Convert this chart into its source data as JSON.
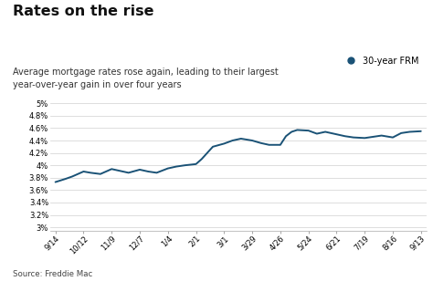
{
  "title": "Rates on the rise",
  "subtitle": "Average mortgage rates rose again, leading to their largest\nyear-over-year gain in over four years",
  "source": "Source: Freddie Mac",
  "legend_label": "30-year FRM",
  "line_color": "#1a5276",
  "background_color": "#ffffff",
  "x_labels": [
    "9/14",
    "10/12",
    "11/9",
    "12/7",
    "1/4",
    "2/1",
    "3/1",
    "3/29",
    "4/26",
    "5/24",
    "6/21",
    "7/19",
    "8/16",
    "9/13"
  ],
  "data_points": [
    [
      0,
      3.73
    ],
    [
      0.35,
      3.78
    ],
    [
      0.6,
      3.82
    ],
    [
      1,
      3.9
    ],
    [
      1.25,
      3.88
    ],
    [
      1.6,
      3.86
    ],
    [
      2,
      3.94
    ],
    [
      2.3,
      3.91
    ],
    [
      2.6,
      3.88
    ],
    [
      3,
      3.93
    ],
    [
      3.3,
      3.9
    ],
    [
      3.6,
      3.88
    ],
    [
      4,
      3.95
    ],
    [
      4.3,
      3.98
    ],
    [
      4.6,
      4.0
    ],
    [
      5,
      4.02
    ],
    [
      5.2,
      4.1
    ],
    [
      5.4,
      4.2
    ],
    [
      5.6,
      4.3
    ],
    [
      6,
      4.35
    ],
    [
      6.3,
      4.4
    ],
    [
      6.6,
      4.43
    ],
    [
      7,
      4.4
    ],
    [
      7.3,
      4.36
    ],
    [
      7.6,
      4.33
    ],
    [
      8,
      4.33
    ],
    [
      8.2,
      4.47
    ],
    [
      8.4,
      4.54
    ],
    [
      8.6,
      4.57
    ],
    [
      9,
      4.56
    ],
    [
      9.3,
      4.51
    ],
    [
      9.6,
      4.54
    ],
    [
      10,
      4.5
    ],
    [
      10.3,
      4.47
    ],
    [
      10.6,
      4.45
    ],
    [
      11,
      4.44
    ],
    [
      11.3,
      4.46
    ],
    [
      11.6,
      4.48
    ],
    [
      12,
      4.45
    ],
    [
      12.3,
      4.52
    ],
    [
      12.6,
      4.54
    ],
    [
      13,
      4.55
    ]
  ],
  "yticks": [
    3.0,
    3.2,
    3.4,
    3.6,
    3.8,
    4.0,
    4.2,
    4.4,
    4.6,
    4.8,
    5.0
  ],
  "ylim": [
    2.95,
    5.08
  ],
  "xlim": [
    -0.2,
    13.2
  ]
}
